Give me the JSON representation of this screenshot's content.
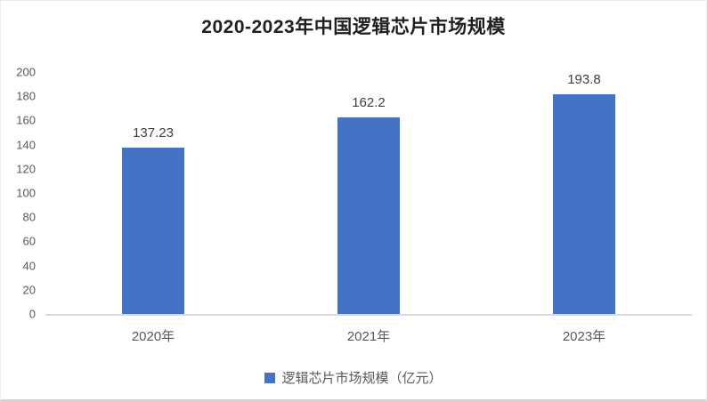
{
  "window": {
    "background": "#ffffff",
    "border_color": "#ececec",
    "bottom_edge_color": "#d2d2d2"
  },
  "chart_data": {
    "type": "bar",
    "title": "2020-2023年中国逻辑芯片市场规模",
    "categories": [
      "2020年",
      "2021年",
      "2023年"
    ],
    "values": [
      137.23,
      162.2,
      193.8
    ],
    "data_labels": [
      "137.23",
      "162.2",
      "193.8"
    ],
    "legend_label": "逻辑芯片市场规模（亿元）",
    "legend_position": "bottom",
    "xlabel": "",
    "ylabel": "",
    "ylim": [
      0,
      200
    ],
    "yticks": [
      0,
      20,
      40,
      60,
      80,
      100,
      120,
      140,
      160,
      180,
      200
    ],
    "grid": false,
    "bar_color": "#4472C4",
    "axis_line_color": "#d9d9d9",
    "title_color": "#1f1f1f",
    "tick_label_color": "#595959",
    "data_label_color": "#404040"
  }
}
